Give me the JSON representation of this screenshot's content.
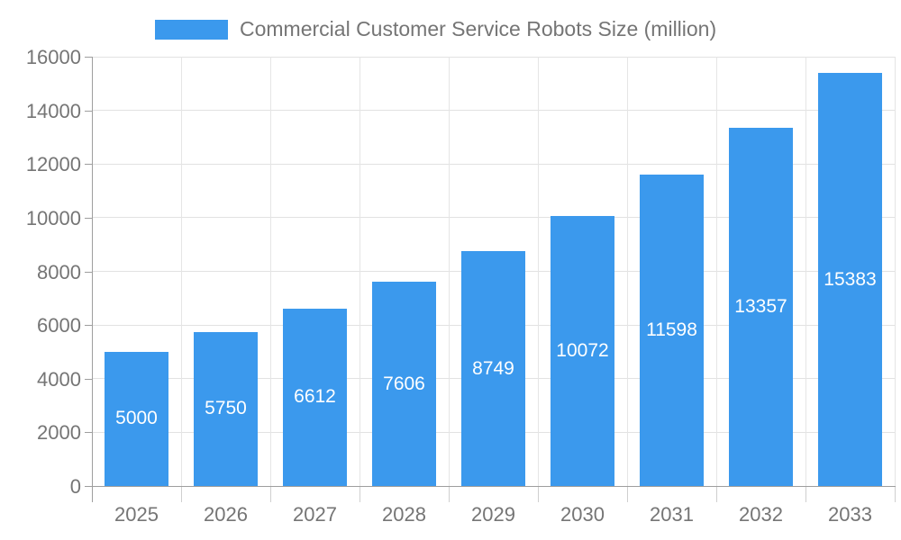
{
  "legend": {
    "label": "Commercial Customer Service Robots Size (million)"
  },
  "colors": {
    "bar": "#3b99ed",
    "bar_value_text": "#ffffff",
    "axis_text": "#757575",
    "grid_line": "#e2e2e2",
    "axis_line": "#9e9e9e",
    "background": "#ffffff"
  },
  "chart_data": {
    "type": "bar",
    "title": "",
    "xlabel": "",
    "ylabel": "",
    "categories": [
      "2025",
      "2026",
      "2027",
      "2028",
      "2029",
      "2030",
      "2031",
      "2032",
      "2033"
    ],
    "series": [
      {
        "name": "Commercial Customer Service Robots Size (million)",
        "values": [
          5000,
          5750,
          6612,
          7606,
          8749,
          10072,
          11598,
          13357,
          15383
        ]
      }
    ],
    "bar_labels_shown": true,
    "ylim": [
      0,
      16000
    ],
    "ytick_interval": 2000,
    "yticks": [
      0,
      2000,
      4000,
      6000,
      8000,
      10000,
      12000,
      14000,
      16000
    ],
    "grid": true,
    "legend_position": "top"
  }
}
